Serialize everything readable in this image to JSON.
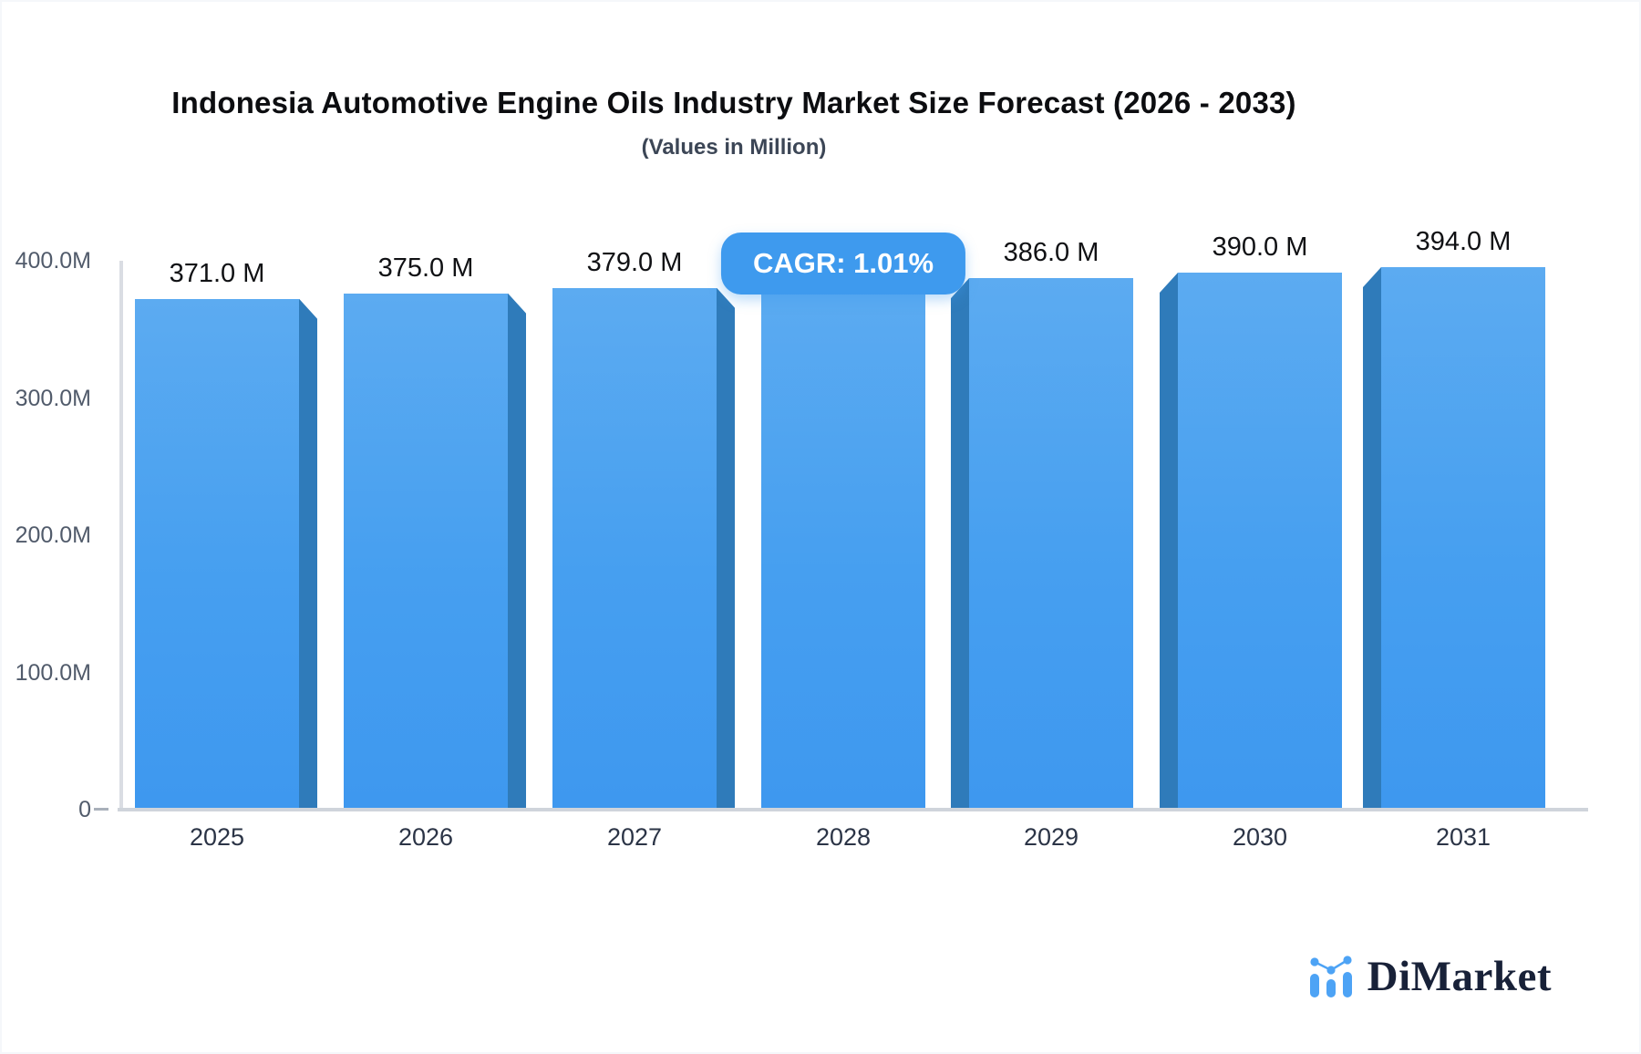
{
  "header": {
    "title": "Indonesia Automotive Engine Oils Industry Market Size Forecast (2026 - 2033)",
    "subtitle": "(Values in Million)"
  },
  "chart_data": {
    "type": "bar",
    "title": "Indonesia Automotive Engine Oils Industry Market Size Forecast (2026 - 2033)",
    "subtitle": "(Values in Million)",
    "categories": [
      "2025",
      "2026",
      "2027",
      "2028",
      "2029",
      "2030",
      "2031"
    ],
    "values": [
      371,
      375,
      379,
      382.5,
      386,
      390,
      394
    ],
    "bar_labels": [
      "371.0 M",
      "375.0 M",
      "379.0 M",
      null,
      "386.0 M",
      "390.0 M",
      "394.0 M"
    ],
    "xlabel": "",
    "ylabel": "",
    "ylim": [
      0,
      400
    ],
    "y_ticks": [
      {
        "label": "400.0M",
        "value": 400
      },
      {
        "label": "300.0M",
        "value": 300
      },
      {
        "label": "200.0M",
        "value": 200
      },
      {
        "label": "100.0M",
        "value": 100
      },
      {
        "label": "0",
        "value": 0
      }
    ],
    "grid": "off",
    "legend": "none",
    "annotation": {
      "text": "CAGR: 1.01%",
      "anchor_category": "2028"
    },
    "colors": {
      "bar_face_top": "#5cabf1",
      "bar_face_bottom": "#3e98ef",
      "bar_side": "#2f7bba",
      "badge_background": "#3e9aee",
      "badge_text": "#ffffff",
      "axis_line": "#d6dae0",
      "tick_text": "#515b6b",
      "category_text": "#2b3446",
      "value_text": "#101114"
    }
  },
  "logo": {
    "text": "DiMarket",
    "icon": "bar-line-chart-icon",
    "icon_color": "#4da3f5",
    "text_color": "#182138"
  }
}
